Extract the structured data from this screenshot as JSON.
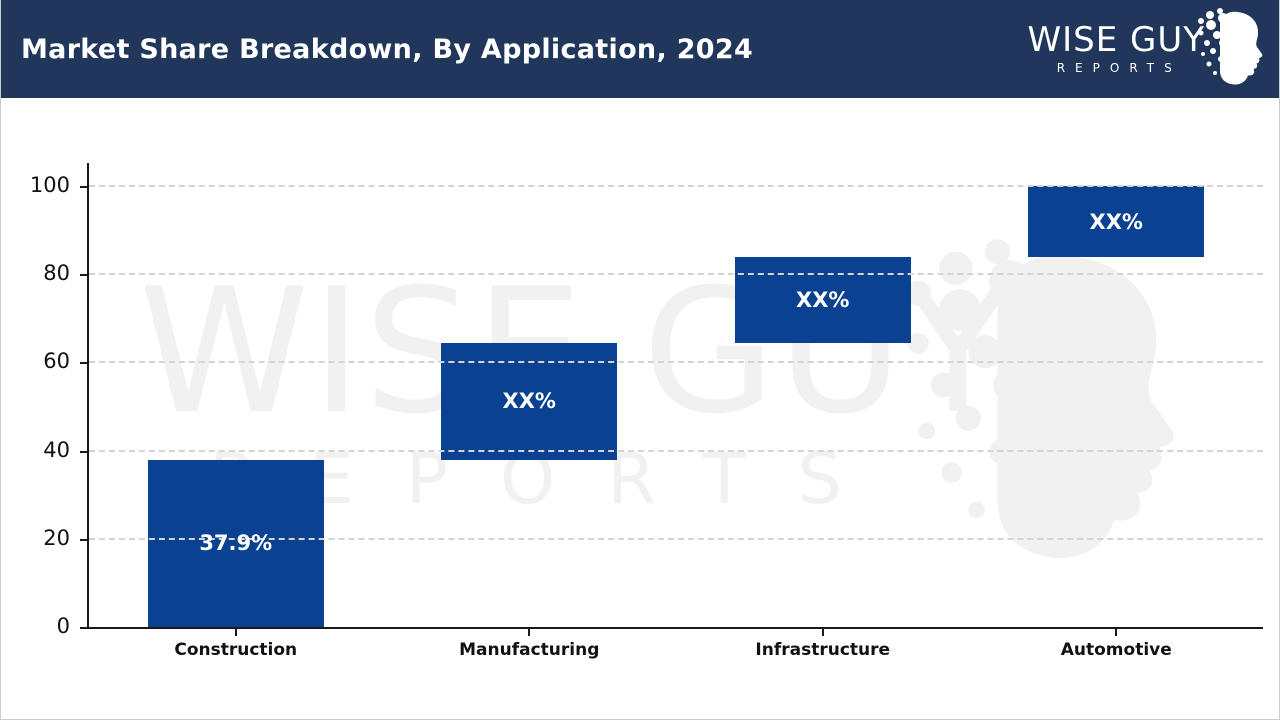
{
  "header": {
    "title": "Market Share Breakdown, By Application, 2024",
    "logo": {
      "line1": "WISE GUY",
      "line2": "REPORTS"
    }
  },
  "watermark": {
    "line1": "WISE GUY",
    "line2": "REPORTS"
  },
  "chart_data": {
    "type": "bar",
    "variant": "floating-waterfall",
    "title": "Market Share Breakdown, By Application, 2024",
    "categories": [
      "Construction",
      "Manufacturing",
      "Infrastructure",
      "Automotive"
    ],
    "series": [
      {
        "name": "Market Share",
        "segments": [
          {
            "category": "Construction",
            "start": 0,
            "end": 37.9,
            "label": "37.9%"
          },
          {
            "category": "Manufacturing",
            "start": 37.9,
            "end": 64.4,
            "label": "XX%"
          },
          {
            "category": "Infrastructure",
            "start": 64.4,
            "end": 83.9,
            "label": "XX%"
          },
          {
            "category": "Automotive",
            "start": 83.9,
            "end": 100,
            "label": "XX%"
          }
        ]
      }
    ],
    "xlabel": "",
    "ylabel": "",
    "ylim": [
      0,
      100
    ],
    "yticks": [
      0,
      20,
      40,
      60,
      80,
      100
    ],
    "grid": true,
    "grid_style": "dashed",
    "grid_over_bars": true,
    "legend": false,
    "colors": {
      "bar": "#0a4191",
      "bar_label": "#ffffff",
      "axis": "#1a1a1a",
      "grid": "#d4d4d4",
      "header_bg": "#21365b",
      "watermark": "#f1f1f1",
      "background": "#ffffff"
    }
  }
}
